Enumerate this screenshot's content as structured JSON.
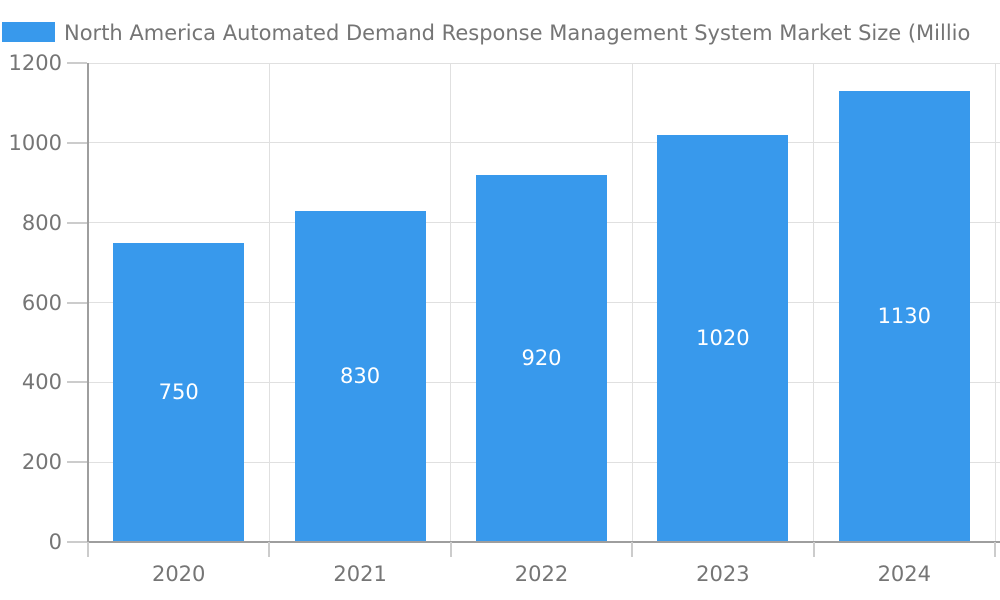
{
  "chart_data": {
    "type": "bar",
    "title": "North America Automated Demand Response Management System Market Size (Millio",
    "categories": [
      "2020",
      "2021",
      "2022",
      "2023",
      "2024"
    ],
    "values": [
      750,
      830,
      920,
      1020,
      1130
    ],
    "value_labels": [
      "750",
      "830",
      "920",
      "1020",
      "1130"
    ],
    "yticks": [
      0,
      200,
      400,
      600,
      800,
      1000,
      1200
    ],
    "ytick_labels": [
      "0",
      "200",
      "400",
      "600",
      "800",
      "1000",
      "1200"
    ],
    "ylim": [
      0,
      1200
    ],
    "xlabel": "",
    "ylabel": "",
    "grid": true,
    "legend_position": "top-left",
    "colors": {
      "bar": "#3899ec",
      "value_text": "#ffffff",
      "axis_text": "#757575",
      "grid_line": "#e0e0e0",
      "tick_line": "#cccccc",
      "axis_line": "#9e9e9e",
      "background": "#ffffff"
    }
  }
}
